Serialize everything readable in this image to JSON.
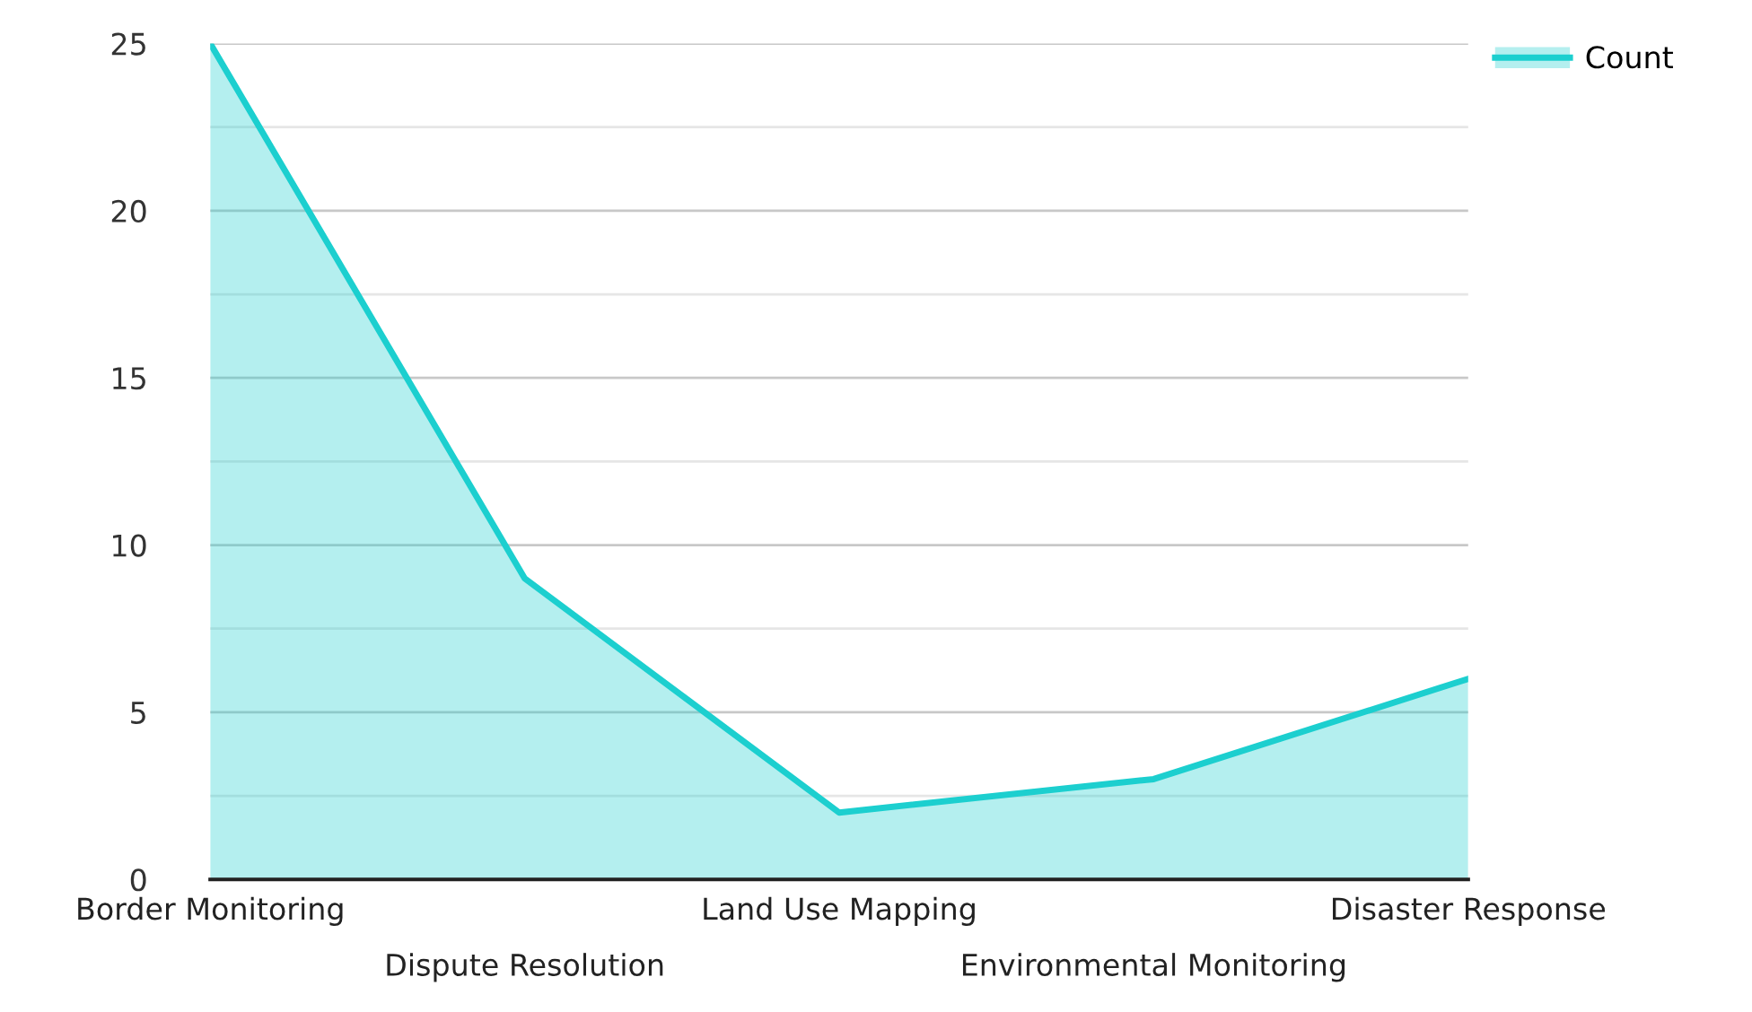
{
  "chart_data": {
    "type": "area",
    "categories": [
      "Border Monitoring",
      "Dispute Resolution",
      "Land Use Mapping",
      "Environmental Monitoring",
      "Disaster Response"
    ],
    "series": [
      {
        "name": "Count",
        "color": "#1ccfcf",
        "values": [
          25,
          9,
          2,
          3,
          6
        ]
      }
    ],
    "ylim": [
      0,
      25
    ],
    "yticks": [
      0,
      {
        "value": 2.5,
        "label": null
      },
      5,
      {
        "value": 7.5,
        "label": null
      },
      10,
      {
        "value": 12.5,
        "label": null
      },
      15,
      {
        "value": 17.5,
        "label": null
      },
      20,
      {
        "value": 22.5,
        "label": null
      },
      25
    ],
    "grid": "y",
    "legend": "top right",
    "marker": "none",
    "line_style": "solid"
  }
}
